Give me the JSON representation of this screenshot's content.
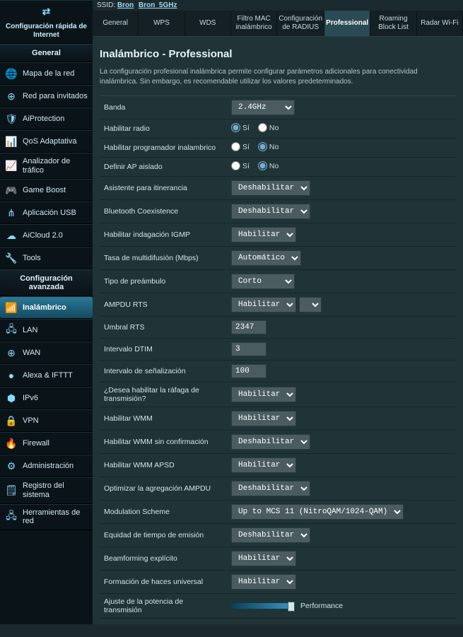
{
  "ssid": {
    "label": "SSID:",
    "links": [
      "Bron",
      "Bron_5GHz"
    ]
  },
  "sidebar": {
    "top": [
      {
        "icon": "⇄",
        "label": "Configuración rápida de Internet"
      }
    ],
    "grp_general": "General",
    "general": [
      {
        "icon": "🌐",
        "label": "Mapa de la red"
      },
      {
        "icon": "⊕",
        "label": "Red para invitados"
      },
      {
        "icon": "🛡",
        "label": "AiProtection"
      },
      {
        "icon": "📊",
        "label": "QoS Adaptativa"
      },
      {
        "icon": "📈",
        "label": "Analizador de tráfico"
      },
      {
        "icon": "🎮",
        "label": "Game Boost"
      },
      {
        "icon": "⋔",
        "label": "Aplicación USB"
      },
      {
        "icon": "☁",
        "label": "AiCloud 2.0"
      },
      {
        "icon": "🔧",
        "label": "Tools"
      }
    ],
    "grp_adv": "Configuración avanzada",
    "advanced": [
      {
        "icon": "📶",
        "label": "Inalámbrico",
        "active": true
      },
      {
        "icon": "🖧",
        "label": "LAN"
      },
      {
        "icon": "⊕",
        "label": "WAN"
      },
      {
        "icon": "●",
        "label": "Alexa & IFTTT"
      },
      {
        "icon": "⬢",
        "label": "IPv6"
      },
      {
        "icon": "🔒",
        "label": "VPN"
      },
      {
        "icon": "🔥",
        "label": "Firewall"
      },
      {
        "icon": "⚙",
        "label": "Administración"
      },
      {
        "icon": "🗒",
        "label": "Registro del sistema"
      },
      {
        "icon": "🖧",
        "label": "Herramientas de red"
      }
    ]
  },
  "tabs": [
    "General",
    "WPS",
    "WDS",
    "Filtro MAC inalámbrico",
    "Configuración de RADIUS",
    "Professional",
    "Roaming Block List",
    "Radar Wi-Fi"
  ],
  "active_tab": 5,
  "page_title": "Inalámbrico - Professional",
  "desc": "La configuración profesional inalámbrica permite configurar parámetros adicionales para conectividad inalámbrica. Sin embargo, es recomendable utilizar los valores predeterminados.",
  "rows": [
    {
      "k": "Banda",
      "type": "select",
      "v": "2.4GHz"
    },
    {
      "k": "Habilitar radio",
      "type": "radio",
      "opts": [
        "Sí",
        "No"
      ],
      "sel": 0
    },
    {
      "k": "Habilitar programador inalambrico",
      "type": "radio",
      "opts": [
        "Sí",
        "No"
      ],
      "sel": 1
    },
    {
      "k": "Definir AP aislado",
      "type": "radio",
      "opts": [
        "Sí",
        "No"
      ],
      "sel": 1
    },
    {
      "k": "Asistente para itinerancia",
      "type": "select",
      "v": "Deshabilitar"
    },
    {
      "k": "Bluetooth Coexistence",
      "type": "select",
      "v": "Deshabilitar"
    },
    {
      "k": "Habilitar indagación IGMP",
      "type": "select",
      "v": "Habilitar"
    },
    {
      "k": "Tasa de multidifusión (Mbps)",
      "type": "select",
      "v": "Automático"
    },
    {
      "k": "Tipo de preámbulo",
      "type": "select",
      "v": "Corto"
    },
    {
      "k": "AMPDU RTS",
      "type": "select2",
      "v": "Habilitar"
    },
    {
      "k": "Umbral RTS",
      "type": "text",
      "v": "2347"
    },
    {
      "k": "Intervalo DTIM",
      "type": "text",
      "v": "3"
    },
    {
      "k": "Intervalo de señalización",
      "type": "text",
      "v": "100"
    },
    {
      "k": "¿Desea habilitar la ráfaga de transmisión?",
      "type": "select",
      "v": "Habilitar"
    },
    {
      "k": "Habilitar WMM",
      "type": "select",
      "v": "Habilitar"
    },
    {
      "k": "Habilitar WMM sin confirmación",
      "type": "select",
      "v": "Deshabilitar"
    },
    {
      "k": "Habilitar WMM APSD",
      "type": "select",
      "v": "Habilitar"
    },
    {
      "k": "Optimizar la agregación AMPDU",
      "type": "select",
      "v": "Deshabilitar"
    },
    {
      "k": "Modulation Scheme",
      "type": "select",
      "v": "Up to MCS 11 (NitroQAM/1024-QAM)",
      "wide": true
    },
    {
      "k": "Equidad de tiempo de emisión",
      "type": "select",
      "v": "Deshabilitar"
    },
    {
      "k": "Beamforming explícito",
      "type": "select",
      "v": "Habilitar"
    },
    {
      "k": "Formación de haces universal",
      "type": "select",
      "v": "Habilitar"
    },
    {
      "k": "Ajuste de la potencia de transmisión",
      "type": "slider",
      "v": "Performance"
    }
  ]
}
